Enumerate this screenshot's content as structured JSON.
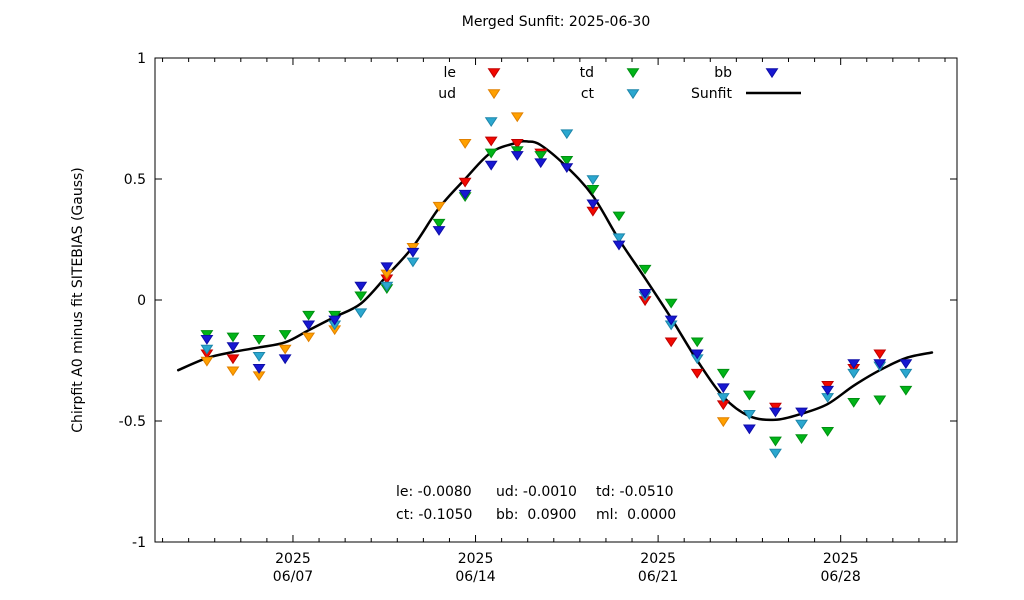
{
  "title": "Merged Sunfit: 2025-06-30",
  "y_axis_label": "Chirpfit A0 minus fit SITEBIAS (Gauss)",
  "stats": {
    "row1": {
      "le": "le: -0.0080",
      "ud": "ud: -0.0010",
      "td": "td: -0.0510"
    },
    "row2": {
      "ct": "ct: -0.1050",
      "bb": "bb:  0.0900",
      "ml": "ml:  0.0000"
    }
  },
  "chart_data": {
    "type": "scatter",
    "title": "Merged Sunfit: 2025-06-30",
    "ylabel": "Chirpfit A0 minus fit SITEBIAS (Gauss)",
    "x_unit": "day of June 2025 (decimal day)",
    "xlim_days": [
      1.71,
      32.46
    ],
    "ylim": [
      -1,
      1
    ],
    "grid": false,
    "legend_position": "top-center-inside",
    "x_ticks": [
      {
        "day": 7,
        "label": [
          "2025",
          "06/07"
        ]
      },
      {
        "day": 14,
        "label": [
          "2025",
          "06/14"
        ]
      },
      {
        "day": 21,
        "label": [
          "2025",
          "06/21"
        ]
      },
      {
        "day": 28,
        "label": [
          "2025",
          "06/28"
        ]
      }
    ],
    "minor_tick_step_days": 1,
    "y_ticks": [
      {
        "v": 1,
        "label": "1"
      },
      {
        "v": 0.5,
        "label": "0.5"
      },
      {
        "v": 0,
        "label": "0"
      },
      {
        "v": -0.5,
        "label": "-0.5"
      },
      {
        "v": -1,
        "label": "-1"
      }
    ],
    "x_days": [
      3.7,
      4.7,
      5.7,
      6.7,
      7.6,
      8.6,
      9.6,
      10.6,
      11.6,
      12.6,
      13.6,
      14.6,
      15.6,
      16.5,
      17.5,
      18.5,
      19.5,
      20.5,
      21.5,
      22.5,
      23.5,
      24.5,
      25.5,
      26.5,
      27.5,
      28.5,
      29.5,
      30.5
    ],
    "series": [
      {
        "name": "le",
        "marker": "triangle-down",
        "color": "#f20800",
        "edge": "#c00000",
        "values": [
          -0.22,
          -0.24,
          null,
          null,
          null,
          null,
          null,
          0.09,
          null,
          null,
          0.49,
          0.66,
          0.65,
          0.61,
          null,
          0.37,
          null,
          0.0,
          -0.17,
          -0.3,
          -0.43,
          null,
          -0.44,
          null,
          -0.35,
          -0.28,
          -0.22,
          null
        ]
      },
      {
        "name": "ud",
        "marker": "triangle-down",
        "color": "#ffa000",
        "edge": "#e08000",
        "values": [
          -0.25,
          -0.29,
          -0.31,
          -0.2,
          -0.15,
          -0.12,
          null,
          0.11,
          0.22,
          0.39,
          0.65,
          null,
          0.76,
          null,
          null,
          null,
          null,
          null,
          null,
          null,
          -0.5,
          null,
          null,
          null,
          null,
          null,
          null,
          null
        ]
      },
      {
        "name": "td",
        "marker": "triangle-down",
        "color": "#00b418",
        "edge": "#009012",
        "values": [
          -0.14,
          -0.15,
          -0.16,
          -0.14,
          -0.06,
          -0.06,
          0.02,
          0.05,
          null,
          0.32,
          0.43,
          0.61,
          0.62,
          0.6,
          0.58,
          0.46,
          0.35,
          0.13,
          -0.01,
          -0.17,
          -0.3,
          -0.39,
          -0.58,
          -0.57,
          -0.54,
          -0.42,
          -0.41,
          -0.37
        ]
      },
      {
        "name": "ct",
        "marker": "triangle-down",
        "color": "#2ba7cf",
        "edge": "#1d86aa",
        "values": [
          -0.2,
          null,
          -0.23,
          null,
          null,
          -0.1,
          -0.05,
          0.06,
          0.16,
          null,
          null,
          0.74,
          null,
          null,
          0.69,
          0.5,
          0.26,
          0.02,
          -0.1,
          -0.24,
          -0.4,
          -0.47,
          -0.63,
          -0.51,
          -0.4,
          -0.3,
          -0.27,
          -0.3
        ]
      },
      {
        "name": "bb",
        "marker": "triangle-down",
        "color": "#1717d1",
        "edge": "#0e0ea8",
        "values": [
          -0.16,
          -0.19,
          -0.28,
          -0.24,
          -0.1,
          -0.08,
          0.06,
          0.14,
          0.2,
          0.29,
          0.44,
          0.56,
          0.6,
          0.57,
          0.55,
          0.4,
          0.23,
          0.03,
          -0.08,
          -0.22,
          -0.36,
          -0.53,
          -0.46,
          -0.46,
          -0.37,
          -0.26,
          -0.26,
          -0.26
        ]
      }
    ],
    "fit_line": {
      "name": "Sunfit",
      "color": "#000000",
      "width": 2.5,
      "points": [
        [
          2.6,
          -0.29
        ],
        [
          3.7,
          -0.24
        ],
        [
          4.7,
          -0.215
        ],
        [
          5.7,
          -0.196
        ],
        [
          6.7,
          -0.175
        ],
        [
          7.6,
          -0.125
        ],
        [
          8.6,
          -0.07
        ],
        [
          9.6,
          -0.015
        ],
        [
          10.6,
          0.1
        ],
        [
          11.6,
          0.22
        ],
        [
          12.6,
          0.38
        ],
        [
          13.6,
          0.5
        ],
        [
          14.6,
          0.61
        ],
        [
          15.6,
          0.65
        ],
        [
          16.0,
          0.655
        ],
        [
          16.5,
          0.64
        ],
        [
          17.5,
          0.55
        ],
        [
          18.5,
          0.43
        ],
        [
          19.5,
          0.25
        ],
        [
          20.5,
          0.09
        ],
        [
          21.5,
          -0.075
        ],
        [
          22.5,
          -0.25
        ],
        [
          23.5,
          -0.4
        ],
        [
          24.5,
          -0.48
        ],
        [
          25.5,
          -0.495
        ],
        [
          26.5,
          -0.47
        ],
        [
          27.5,
          -0.43
        ],
        [
          28.5,
          -0.354
        ],
        [
          29.5,
          -0.29
        ],
        [
          30.5,
          -0.24
        ],
        [
          31.5,
          -0.217
        ]
      ]
    },
    "legend_rows": [
      [
        "le",
        "td",
        "bb"
      ],
      [
        "ud",
        "ct",
        "Sunfit"
      ]
    ]
  }
}
